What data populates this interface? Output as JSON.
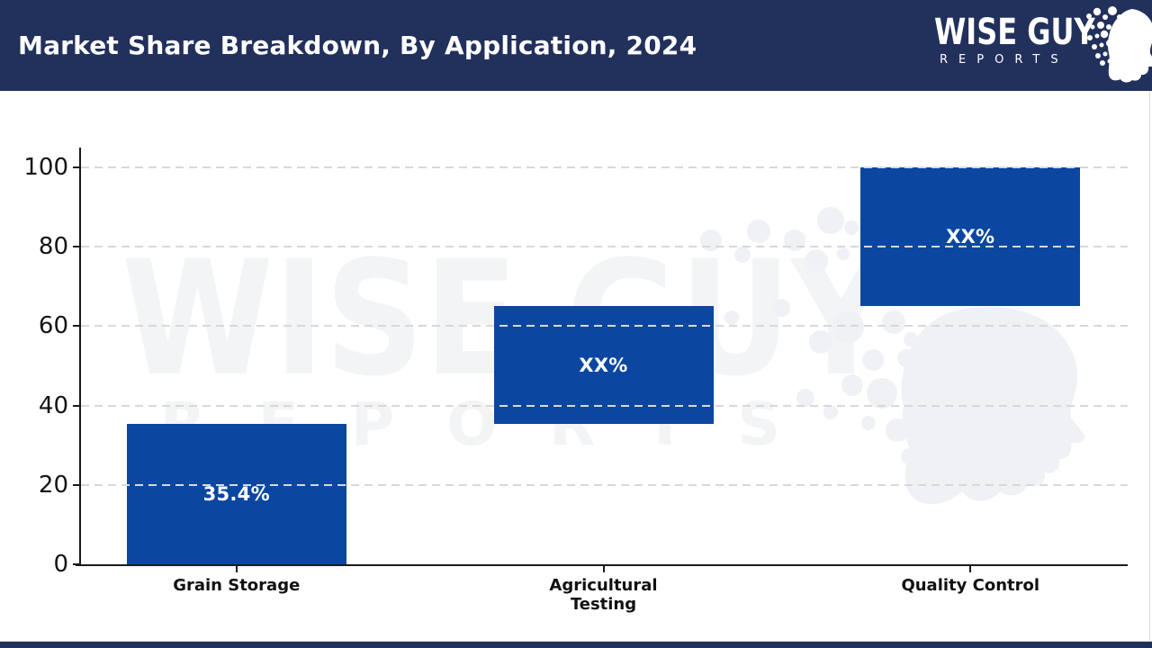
{
  "header": {
    "title": "Market Share Breakdown, By Application, 2024",
    "logo": {
      "line1": "WISE GUY",
      "line2": "REPORTS"
    }
  },
  "watermark": {
    "line1": "WISE GUY",
    "line2": "REPORTS"
  },
  "chart_data": {
    "type": "bar",
    "subtype": "waterfall-floating-bars",
    "title": "Market Share Breakdown, By Application, 2024",
    "categories": [
      "Grain Storage",
      "Agricultural Testing",
      "Quality Control"
    ],
    "category_lines": [
      [
        "Grain Storage"
      ],
      [
        "Agricultural",
        "Testing"
      ],
      [
        "Quality Control"
      ]
    ],
    "segments": [
      {
        "category": "Grain Storage",
        "start": 0,
        "end": 35.4,
        "label": "35.4%"
      },
      {
        "category": "Agricultural Testing",
        "start": 35.4,
        "end": 65,
        "label": "XX%"
      },
      {
        "category": "Quality Control",
        "start": 65,
        "end": 100,
        "label": "XX%"
      }
    ],
    "yticks": [
      0,
      20,
      40,
      60,
      80,
      100
    ],
    "ytick_labels": [
      "0",
      "20",
      "40",
      "60",
      "80",
      "100"
    ],
    "ylim": [
      0,
      100
    ],
    "xlabel": "",
    "ylabel": "",
    "grid": "horizontal-dashed",
    "legend": "none",
    "bar_color": "#0b47a1",
    "bar_label_color": "#ffffff",
    "axis_color": "#1a1a1a",
    "gridline_color": "#d8d8d8"
  },
  "colors": {
    "header_bg": "#22305c",
    "footer_bg": "#22305c",
    "watermark": "#f3f4f6",
    "watermark_shapes": "#f0f1f4"
  }
}
